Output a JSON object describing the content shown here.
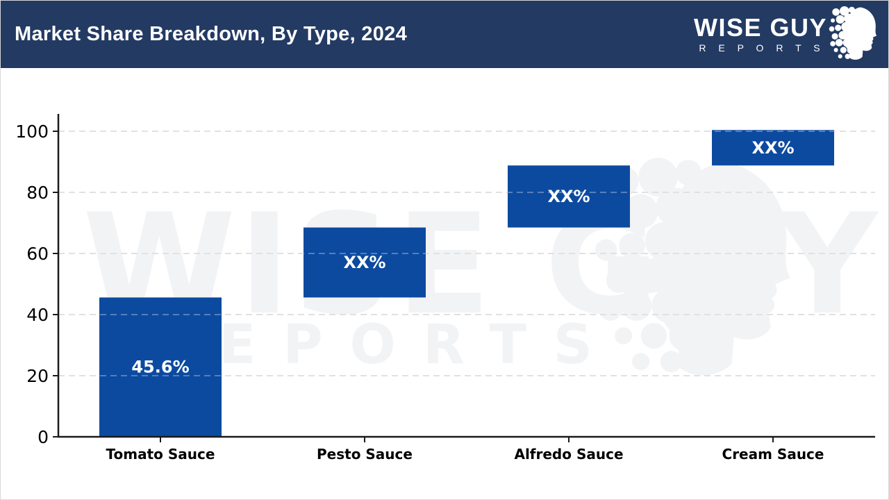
{
  "header": {
    "title": "Market Share Breakdown, By Type, 2024",
    "bg_color": "#233a63",
    "logo": {
      "line1": "WISE GUY",
      "line2": "R E P O R T S"
    }
  },
  "watermark": {
    "line1": "WISE GUY",
    "line2": "REPORTS",
    "color": "#f2f3f5"
  },
  "chart_data": {
    "type": "bar",
    "subtype": "waterfall",
    "title": "Market Share Breakdown, By Type, 2024",
    "categories": [
      "Tomato Sauce",
      "Pesto Sauce",
      "Alfredo Sauce",
      "Cream Sauce"
    ],
    "data_labels": [
      "45.6%",
      "XX%",
      "XX%",
      "XX%"
    ],
    "values": [
      45.6,
      22.9,
      20.3,
      11.6
    ],
    "cumulative": [
      [
        0,
        45.6
      ],
      [
        45.6,
        68.5
      ],
      [
        68.5,
        88.8
      ],
      [
        88.8,
        100.4
      ]
    ],
    "yticks": [
      0,
      20,
      40,
      60,
      80,
      100
    ],
    "ylim": [
      0,
      105
    ],
    "grid": true,
    "bar_color": "#0c4aa0",
    "gridline_color": "#d4d4d4",
    "axis_color": "#1a1a1a",
    "label_color": "#000000",
    "bar_label_color": "#ffffff",
    "legend": "none"
  }
}
